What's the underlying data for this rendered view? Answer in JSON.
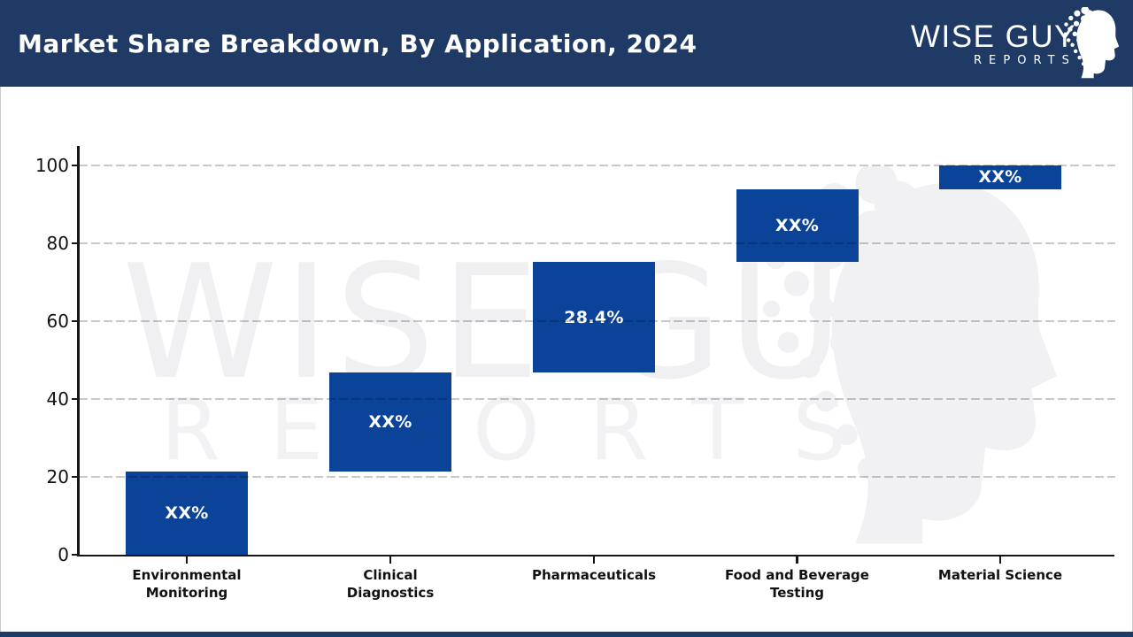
{
  "header": {
    "title": "Market Share Breakdown, By Application, 2024",
    "logo": {
      "wordmark": "WISE GUY",
      "subtext": "REPORTS"
    }
  },
  "watermark": {
    "line1": "WISE GUY",
    "line2": "REPORTS"
  },
  "chart_data": {
    "type": "bar",
    "subtype": "floating-waterfall-breakdown",
    "title": "Market Share Breakdown, By Application, 2024",
    "unit": "%",
    "categories": [
      "Environmental Monitoring",
      "Clinical Diagnostics",
      "Pharmaceuticals",
      "Food and Beverage Testing",
      "Material Science"
    ],
    "category_lines": [
      [
        "Environmental",
        "Monitoring"
      ],
      [
        "Clinical",
        "Diagnostics"
      ],
      [
        "Pharmaceuticals"
      ],
      [
        "Food and Beverage",
        "Testing"
      ],
      [
        "Material Science"
      ]
    ],
    "segments": [
      {
        "category": "Environmental Monitoring",
        "start": 0,
        "end": 21.4,
        "value": 21.4,
        "label": "XX%"
      },
      {
        "category": "Clinical Diagnostics",
        "start": 21.4,
        "end": 46.8,
        "value": 25.4,
        "label": "XX%"
      },
      {
        "category": "Pharmaceuticals",
        "start": 46.8,
        "end": 75.2,
        "value": 28.4,
        "label": "28.4%"
      },
      {
        "category": "Food and Beverage Testing",
        "start": 75.2,
        "end": 93.9,
        "value": 18.7,
        "label": "XX%"
      },
      {
        "category": "Material Science",
        "start": 93.9,
        "end": 100,
        "value": 6.1,
        "label": "XX%"
      }
    ],
    "yticks": [
      0,
      20,
      40,
      60,
      80,
      100
    ],
    "ylim": [
      0,
      105
    ],
    "xlabel": "",
    "ylabel": "",
    "grid": "horizontal-dashed",
    "legend": null,
    "bar_color": "#0b4399",
    "bar_label_color": "#ffffff"
  },
  "colors": {
    "header_bg": "#203a66",
    "footer_bg": "#203a66",
    "bar": "#0b4399",
    "axis": "#161616",
    "watermark": "#f0f0f3",
    "frame_border": "#cccccc"
  }
}
